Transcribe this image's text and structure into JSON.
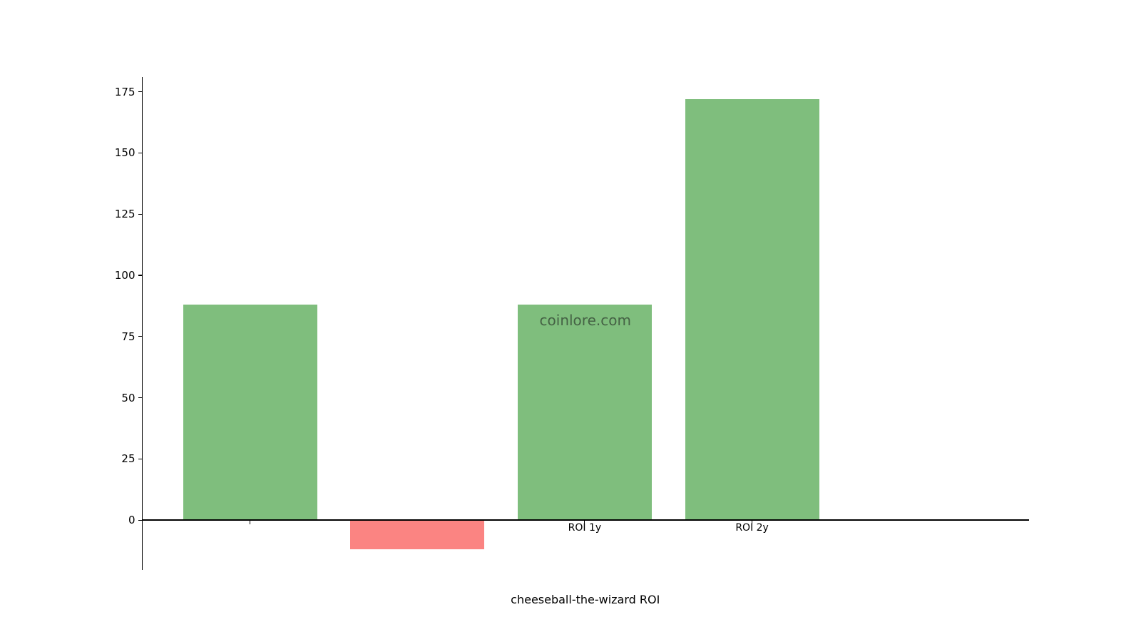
{
  "page": {
    "background": "#ffffff",
    "watermark": "coinlore.com"
  },
  "chart_data": {
    "type": "bar",
    "categories": [
      "",
      "",
      "ROI 1y",
      "ROI 2y"
    ],
    "values": [
      88,
      -12,
      88,
      172
    ],
    "title": "",
    "xlabel": "cheeseball-the-wizard ROI",
    "ylabel": "",
    "ylim": [
      -20,
      181
    ],
    "yticks": [
      0,
      25,
      50,
      75,
      100,
      125,
      150,
      175
    ],
    "grid": false,
    "legend": false,
    "bar_colors": [
      "#7fbe7d",
      "#fb8482",
      "#7fbe7d",
      "#7fbe7d"
    ],
    "positive_color": "#7fbe7d",
    "negative_color": "#fb8482",
    "axis_color": "#000000",
    "tick_text_color": "#000000",
    "watermark_color": "#456245"
  }
}
